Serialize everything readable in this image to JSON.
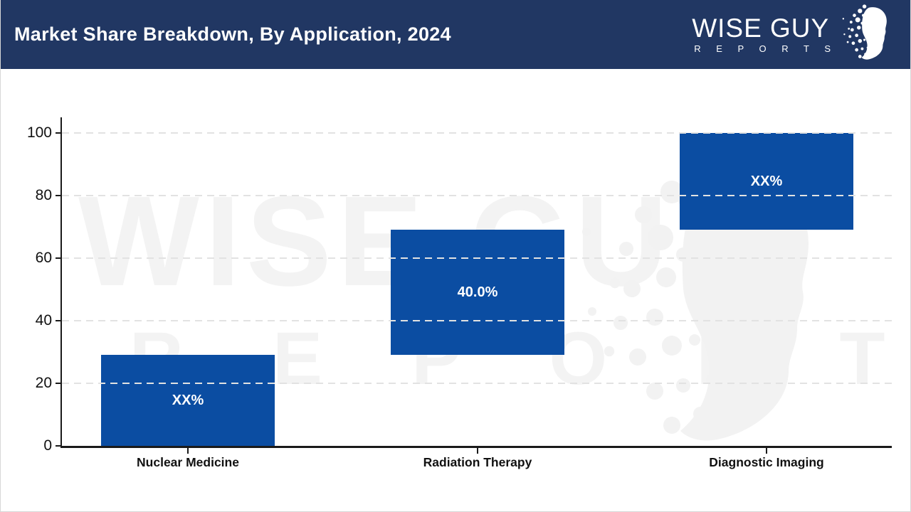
{
  "header": {
    "title": "Market Share Breakdown, By Application, 2024",
    "logo": {
      "line1": "WISE GUY",
      "line2": "R E P O R T S"
    }
  },
  "watermark": {
    "line1": "WISE GUY",
    "line2": "R E P O R T S"
  },
  "colors": {
    "header_bg": "#213763",
    "bar": "#0b4da2",
    "grid": "#e2e2e2",
    "axis": "#1a1a1a",
    "bar_label": "#ffffff",
    "tick_text": "#111111",
    "watermark": "#f3f3f3"
  },
  "chart_data": {
    "type": "bar",
    "subtype": "waterfall",
    "title": "Market Share Breakdown, By Application, 2024",
    "categories": [
      "Nuclear Medicine",
      "Radiation Therapy",
      "Diagnostic Imaging"
    ],
    "segments": [
      {
        "category": "Nuclear Medicine",
        "start": 0,
        "end": 29,
        "label": "XX%"
      },
      {
        "category": "Radiation Therapy",
        "start": 29,
        "end": 69,
        "label": "40.0%"
      },
      {
        "category": "Diagnostic Imaging",
        "start": 69,
        "end": 100,
        "label": "XX%"
      }
    ],
    "y_ticks": [
      0,
      20,
      40,
      60,
      80,
      100
    ],
    "ylim": [
      0,
      105
    ],
    "xlabel": "",
    "ylabel": "",
    "grid": "horizontal-dashed",
    "legend": "none",
    "bar_color": "#0b4da2",
    "bar_label_color": "#ffffff"
  }
}
